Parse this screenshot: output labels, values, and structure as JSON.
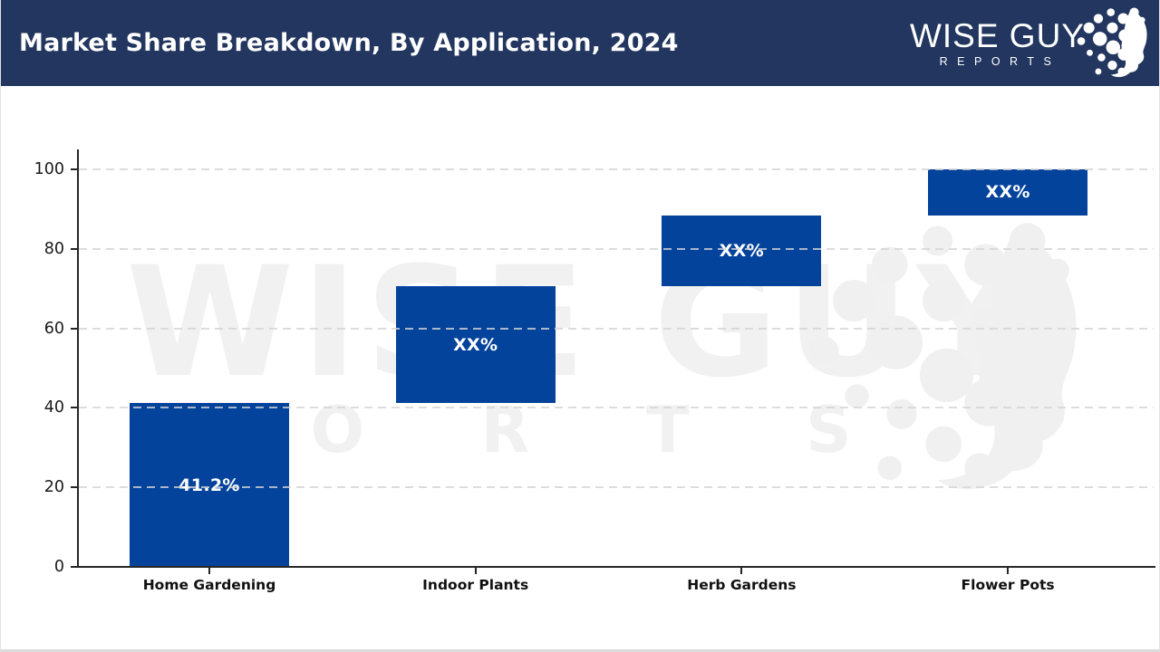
{
  "header": {
    "title": "Market Share Breakdown, By Application, 2024",
    "logo": {
      "line1": "WISE GUY",
      "line2": "REPORTS"
    }
  },
  "watermark": {
    "line1": "WISE GUY",
    "line2": "P O R T S"
  },
  "chart_data": {
    "type": "bar",
    "subtype": "stacked-waterfall",
    "title": "Market Share Breakdown, By Application, 2024",
    "categories": [
      "Home Gardening",
      "Indoor Plants",
      "Herb Gardens",
      "Flower Pots"
    ],
    "segments": [
      {
        "category": "Home Gardening",
        "start": 0,
        "end": 41.2,
        "value": 41.2,
        "label": "41.2%"
      },
      {
        "category": "Indoor Plants",
        "start": 41.2,
        "end": 70.6,
        "value": 29.4,
        "label": "XX%"
      },
      {
        "category": "Herb Gardens",
        "start": 70.6,
        "end": 88.4,
        "value": 17.8,
        "label": "XX%"
      },
      {
        "category": "Flower Pots",
        "start": 88.4,
        "end": 100.0,
        "value": 11.6,
        "label": "XX%"
      }
    ],
    "yticks": [
      0,
      20,
      40,
      60,
      80,
      100
    ],
    "ylim": [
      0,
      105
    ],
    "xlabel": "",
    "ylabel": "",
    "grid": "horizontal-dashed",
    "legend": "none"
  },
  "colors": {
    "header_bg": "#22365f",
    "bar": "#04439c",
    "bar_label": "#ffffff",
    "axis": "#262626",
    "grid": "#d4d4d4",
    "watermark": "#f1f1f1",
    "tick_text": "#111111"
  }
}
